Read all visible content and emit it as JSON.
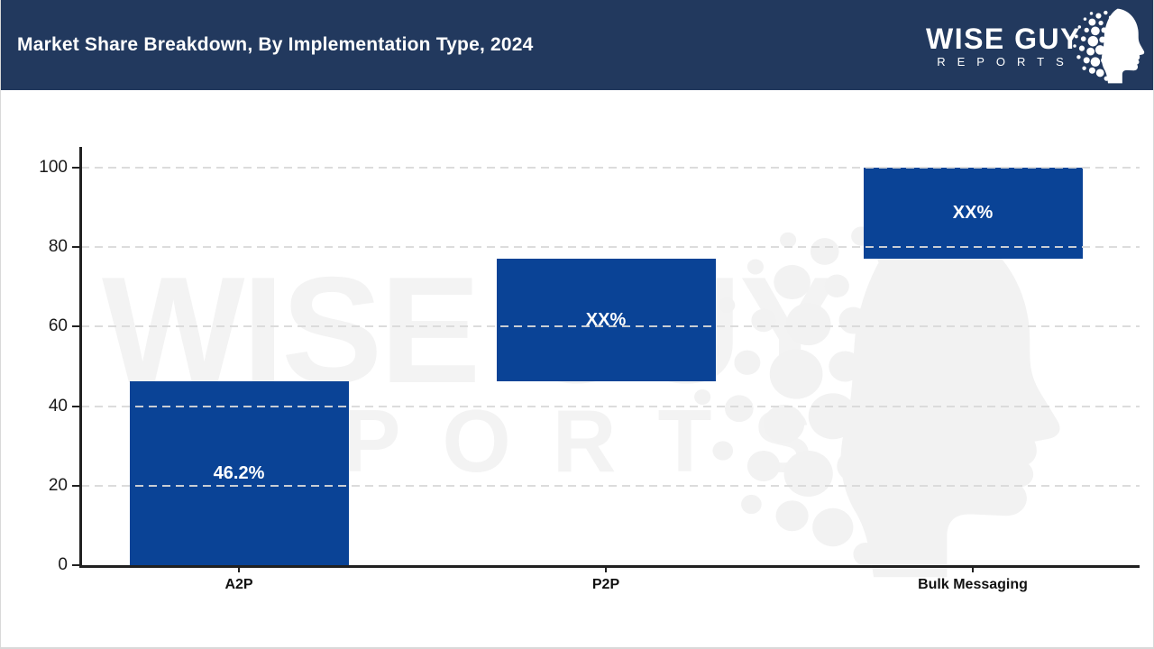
{
  "header": {
    "title": "Market Share Breakdown, By Implementation Type, 2024",
    "logo": {
      "line1": "WISE GUY",
      "line2": "REPORTS"
    }
  },
  "watermark": {
    "line1": "WISE GUY",
    "line2": "REPORTS"
  },
  "chart_data": {
    "type": "bar",
    "variant": "waterfall-floating-segments",
    "title": "Market Share Breakdown, By Implementation Type, 2024",
    "categories": [
      "A2P",
      "P2P",
      "Bulk Messaging"
    ],
    "segments": [
      {
        "category": "A2P",
        "from": 0,
        "to": 46.2,
        "label": "46.2%"
      },
      {
        "category": "P2P",
        "from": 46.2,
        "to": 77.1,
        "label": "XX%"
      },
      {
        "category": "Bulk Messaging",
        "from": 77.1,
        "to": 100,
        "label": "XX%"
      }
    ],
    "yticks": [
      0,
      20,
      40,
      60,
      80,
      100
    ],
    "ylim": [
      0,
      105
    ],
    "xlabel": "",
    "ylabel": "",
    "grid": "horizontal-dashed",
    "legend": "none"
  },
  "colors": {
    "header_bg": "#22395E",
    "bar": "#0A4396",
    "bar_label": "#FFFFFF",
    "grid": "#D9D9D9",
    "axis": "#212121",
    "tick_text": "#1A1A1A",
    "watermark": "#F3F3F3",
    "background": "#FFFFFF"
  }
}
